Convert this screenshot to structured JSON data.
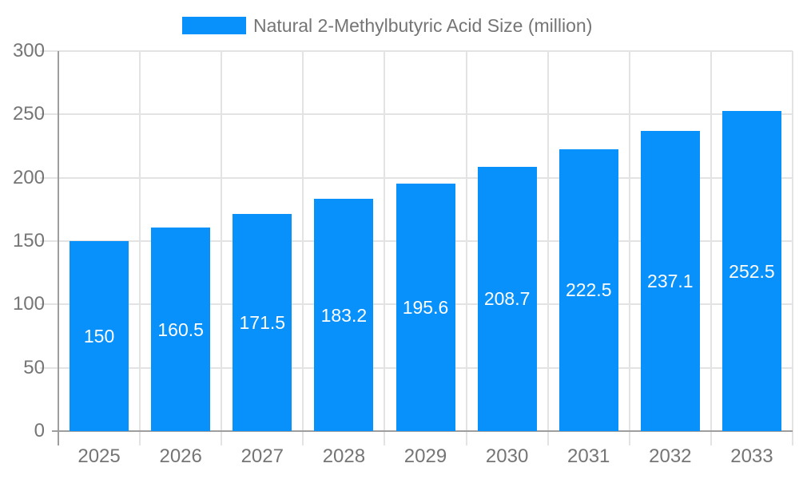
{
  "chart_data": {
    "type": "bar",
    "title": "Natural 2-Methylbutyric Acid Size (million)",
    "series_name": "Natural 2-Methylbutyric Acid Size (million)",
    "categories": [
      "2025",
      "2026",
      "2027",
      "2028",
      "2029",
      "2030",
      "2031",
      "2032",
      "2033"
    ],
    "values": [
      150,
      160.5,
      171.5,
      183.2,
      195.6,
      208.7,
      222.5,
      237.1,
      252.5
    ],
    "value_labels": [
      "150",
      "160.5",
      "171.5",
      "183.2",
      "195.6",
      "208.7",
      "222.5",
      "237.1",
      "252.5"
    ],
    "xlabel": "",
    "ylabel": "",
    "ylim": [
      0,
      300
    ],
    "yticks": [
      0,
      50,
      100,
      150,
      200,
      250,
      300
    ],
    "grid": true,
    "legend_position": "top-center",
    "colors": {
      "bar": "#0890FB",
      "grid": "#E3E3E3",
      "axis": "#9E9E9E",
      "text": "#757575",
      "value_label": "#FFFFFF",
      "background": "#FFFFFF"
    }
  }
}
